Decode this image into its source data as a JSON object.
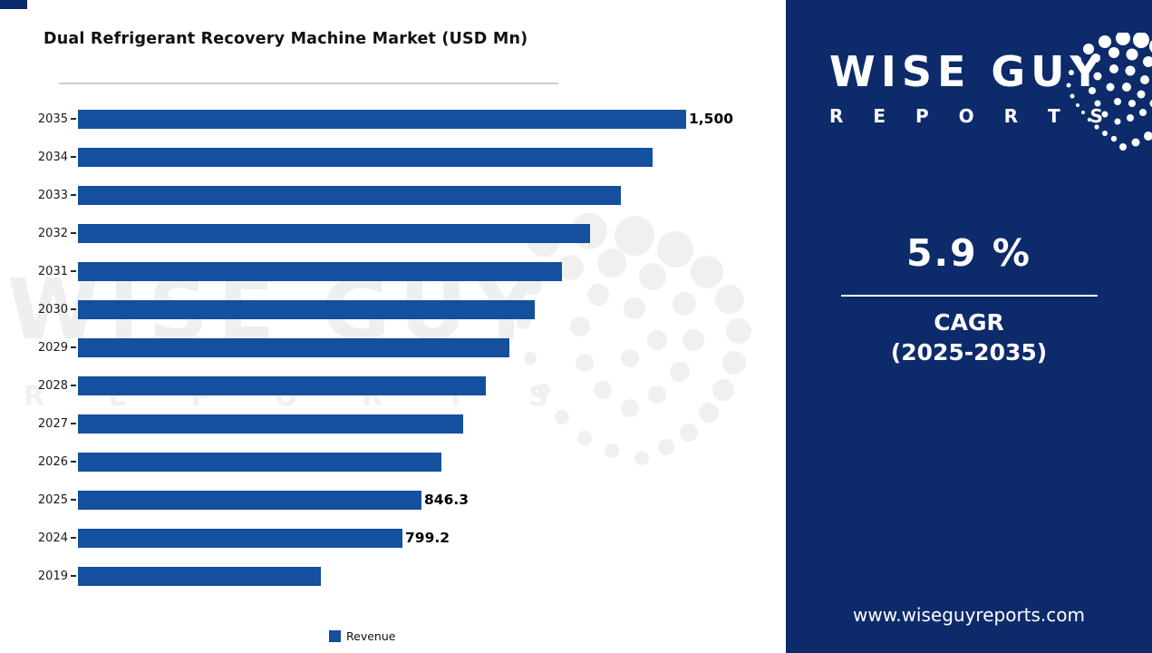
{
  "colors": {
    "bar": "#14509e",
    "panel": "#0d2b6b",
    "divider": "#cccccc",
    "watermark": "#f0f0f0"
  },
  "chart_data": {
    "type": "bar",
    "orientation": "horizontal",
    "title": "Dual Refrigerant Recovery Machine Market (USD Mn)",
    "unit": "USD Mn",
    "categories": [
      "2035",
      "2034",
      "2033",
      "2032",
      "2031",
      "2030",
      "2029",
      "2028",
      "2027",
      "2026",
      "2025",
      "2024",
      "2019"
    ],
    "values": [
      1500,
      1417.7,
      1338.7,
      1264.1,
      1193.7,
      1127.2,
      1064.4,
      1005.1,
      949.1,
      896.2,
      846.3,
      799.2,
      600
    ],
    "bar_labels": [
      "1,500",
      "",
      "",
      "",
      "",
      "",
      "",
      "",
      "",
      "",
      "846.3",
      "799.2",
      ""
    ],
    "legend_label": "Revenue",
    "legend_position": "bottom",
    "grid": false,
    "value_axis_visible": false,
    "notes": "Only 2035 (1,500), 2025 (846.3) and 2024 (799.2) carry printed data labels; other values estimated from bar lengths at 5.9% CAGR"
  },
  "sidebar": {
    "logo": {
      "line1": "WISE GUY",
      "line2": "R E P O R T S"
    },
    "cagr": {
      "value": "5.9 %",
      "label": "CAGR",
      "range": "(2025-2035)"
    },
    "website": "www.wiseguyreports.com"
  },
  "watermark": {
    "line1": "WISE GUY",
    "line2": "R E P O R T S"
  }
}
